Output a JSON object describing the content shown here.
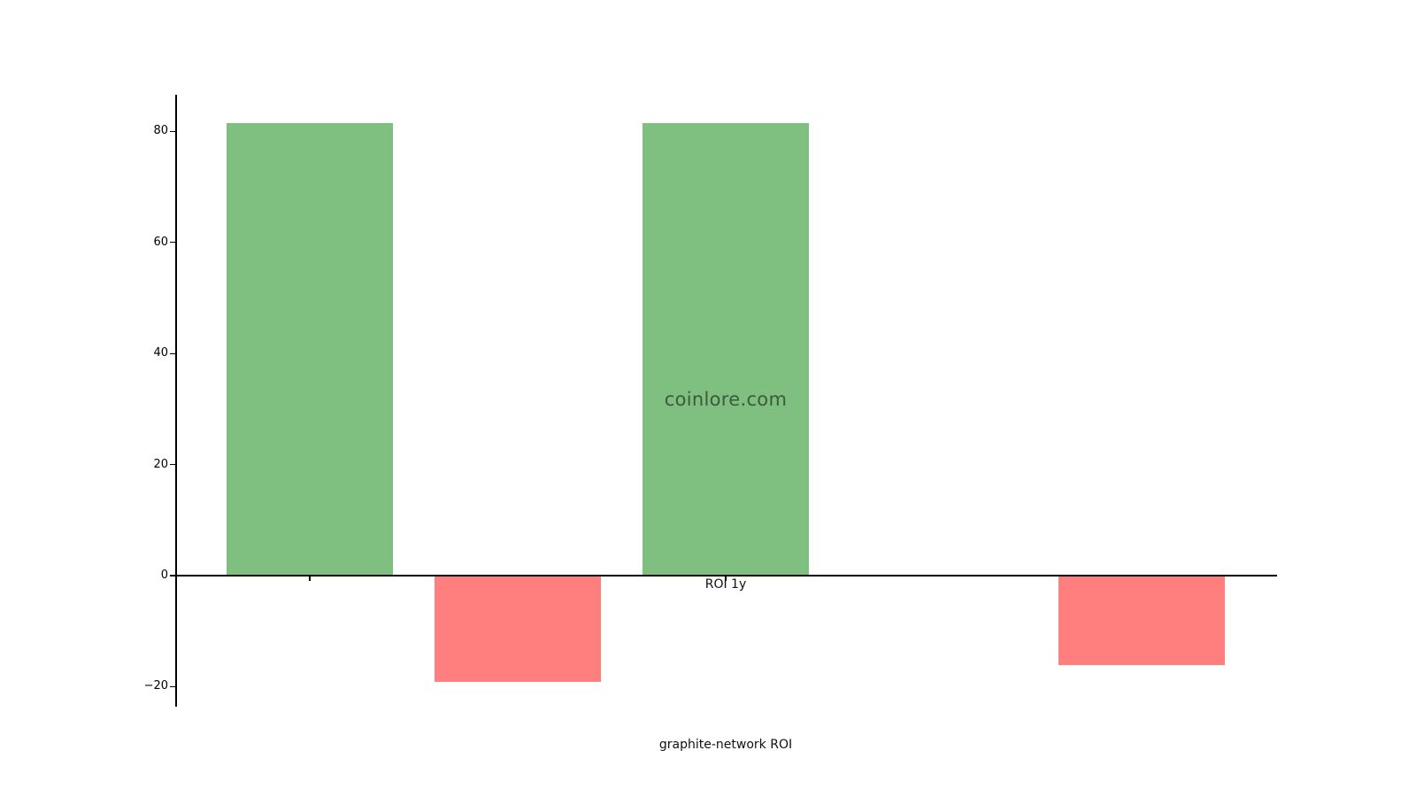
{
  "chart_data": {
    "type": "bar",
    "title": "graphite-network ROI",
    "watermark": "coinlore.com",
    "categories": [
      "",
      "",
      "ROI 1y",
      "",
      ""
    ],
    "values": [
      81.5,
      -19.1,
      81.5,
      null,
      -16.1
    ],
    "bar_colors": [
      "#7fbf7f",
      "#ff7f7f",
      "#7fbf7f",
      null,
      "#ff7f7f"
    ],
    "positive_color": "#7fbf7f",
    "negative_color": "#ff7f7f",
    "yticks": [
      80,
      60,
      40,
      20,
      0,
      -20
    ],
    "ylim": [
      -23.6,
      86.6
    ],
    "x_ticks_shown_at": [
      0,
      2
    ],
    "grid": false,
    "legend": null,
    "xlabel": "",
    "ylabel": ""
  }
}
